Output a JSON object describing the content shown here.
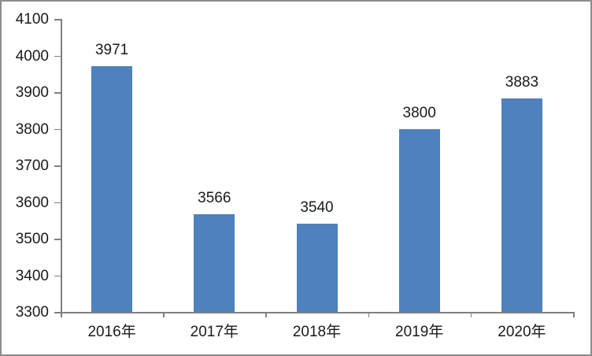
{
  "chart_data": {
    "type": "bar",
    "title": "",
    "xlabel": "",
    "ylabel": "",
    "categories": [
      "2016年",
      "2017年",
      "2018年",
      "2019年",
      "2020年"
    ],
    "values": [
      3971,
      3566,
      3540,
      3800,
      3883
    ],
    "data_labels": [
      "3971",
      "3566",
      "3540",
      "3800",
      "3883"
    ],
    "ylim": [
      3300,
      4100
    ],
    "ytick_labels": [
      "3300",
      "3400",
      "3500",
      "3600",
      "3700",
      "3800",
      "3900",
      "4000",
      "4100"
    ],
    "yticks": [
      3300,
      3400,
      3500,
      3600,
      3700,
      3800,
      3900,
      4000,
      4100
    ],
    "grid": false,
    "legend": false,
    "colors": {
      "bar": "#4f81bd",
      "axis": "#7f7f7f",
      "chart_border": "#8c8c8c",
      "text": "#1a1a1a",
      "background": "#ffffff"
    }
  }
}
